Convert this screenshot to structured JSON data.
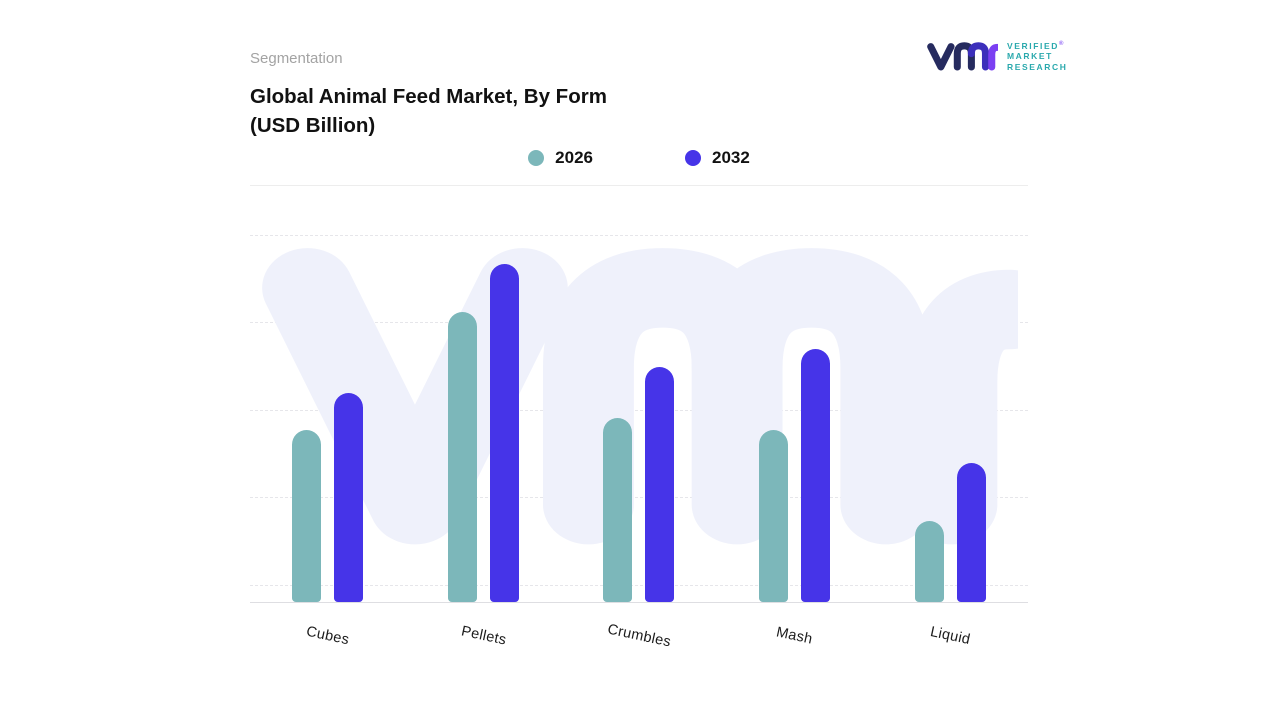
{
  "page": {
    "section_label": "Segmentation"
  },
  "header": {
    "title_line1": "Global Animal Feed Market, By Form",
    "title_line2": "(USD Billion)"
  },
  "logo": {
    "line1": "VERIFIED",
    "line2": "MARKET",
    "line3": "RESEARCH",
    "registered": "®",
    "navy": "#262b5f",
    "purple": "#7b3ff2",
    "teal": "#2aa9ad"
  },
  "chart_data": {
    "type": "bar",
    "title": "Global Animal Feed Market, By Form (USD Billion)",
    "categories": [
      "Cubes",
      "Pellets",
      "Crumbles",
      "Mash",
      "Liquid"
    ],
    "series": [
      {
        "name": "2026",
        "color": "#7cb7ba",
        "values": [
          47,
          79,
          50,
          47,
          22
        ]
      },
      {
        "name": "2032",
        "color": "#4634e8",
        "values": [
          57,
          92,
          64,
          69,
          38
        ]
      }
    ],
    "ylim": [
      0,
      100
    ],
    "xlabel": "",
    "ylabel": "",
    "grid": "horizontal-dashed",
    "legend_position": "top-center",
    "value_axis_labels_visible": false,
    "note": "values estimated from gridlines; no numeric axis shown"
  }
}
